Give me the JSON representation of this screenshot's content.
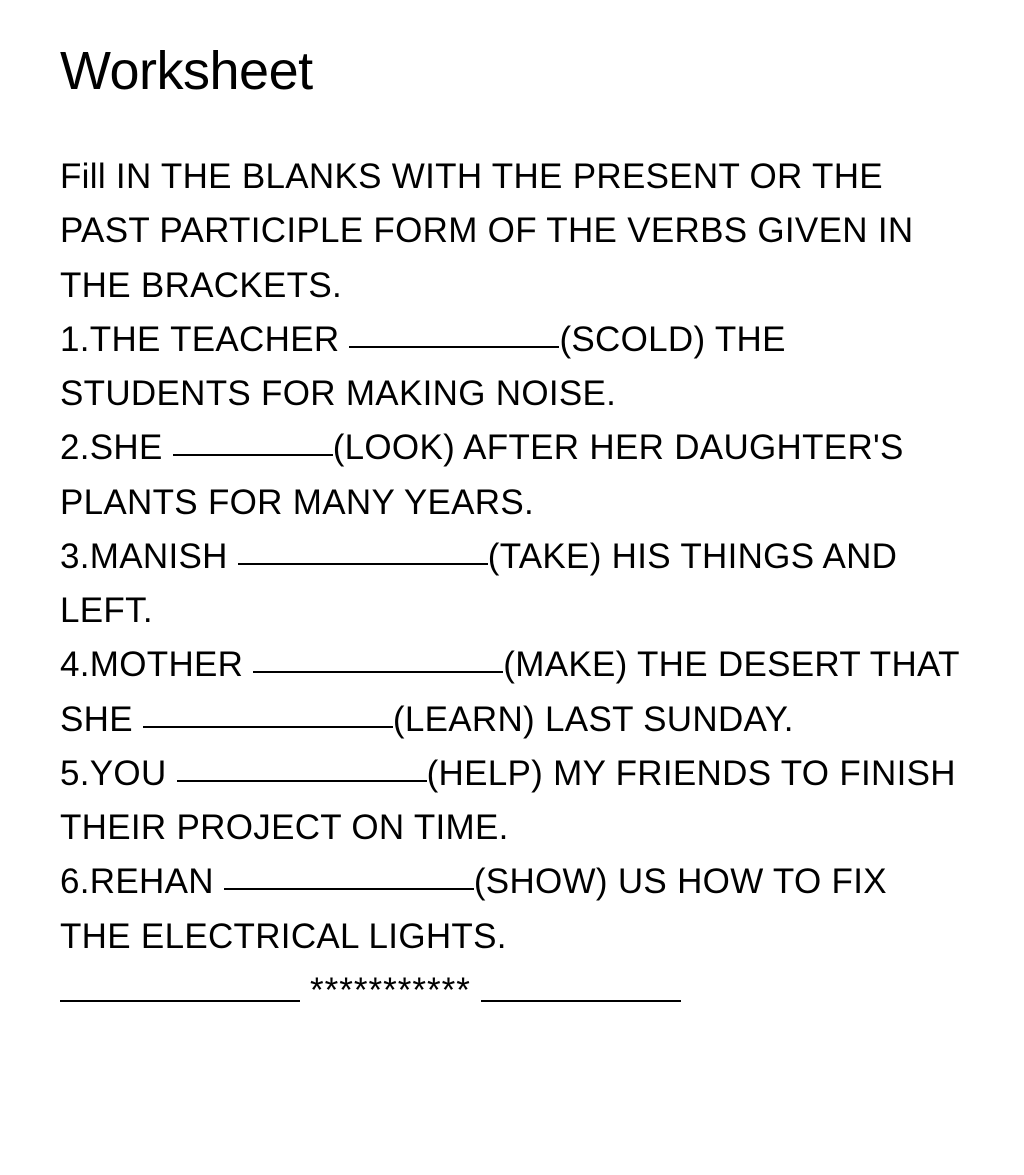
{
  "title": "Worksheet",
  "instructions": "Fill IN THE BLANKS WITH THE PRESENT OR THE PAST PARTICIPLE FORM OF THE VERBS GIVEN IN THE BRACKETS.",
  "questions": {
    "q1": {
      "prefix": "1.THE TEACHER ",
      "verb": "(SCOLD) THE STUDENTS FOR MAKING NOISE."
    },
    "q2": {
      "prefix": "2.SHE ",
      "verb": "(LOOK) AFTER HER DAUGHTER'S PLANTS FOR MANY YEARS."
    },
    "q3": {
      "prefix": "3.MANISH ",
      "verb": "(TAKE) HIS THINGS AND LEFT."
    },
    "q4": {
      "prefix": "4.MOTHER ",
      "verb1": "(MAKE) THE DESERT THAT SHE ",
      "verb2": "(LEARN) LAST SUNDAY."
    },
    "q5": {
      "prefix": "5.YOU ",
      "verb": "(HELP) MY FRIENDS TO FINISH THEIR PROJECT ON TIME."
    },
    "q6": {
      "prefix": "6.REHAN ",
      "verb": "(SHOW) US HOW TO FIX THE ELECTRICAL LIGHTS."
    }
  },
  "footer_stars": "***********",
  "styling": {
    "background_color": "#ffffff",
    "text_color": "#000000",
    "title_fontsize": 54,
    "body_fontsize": 35,
    "line_height": 1.55,
    "blank_border_color": "#000000",
    "blank_border_width": 2,
    "font_family": "-apple-system, Helvetica, Arial, sans-serif"
  }
}
